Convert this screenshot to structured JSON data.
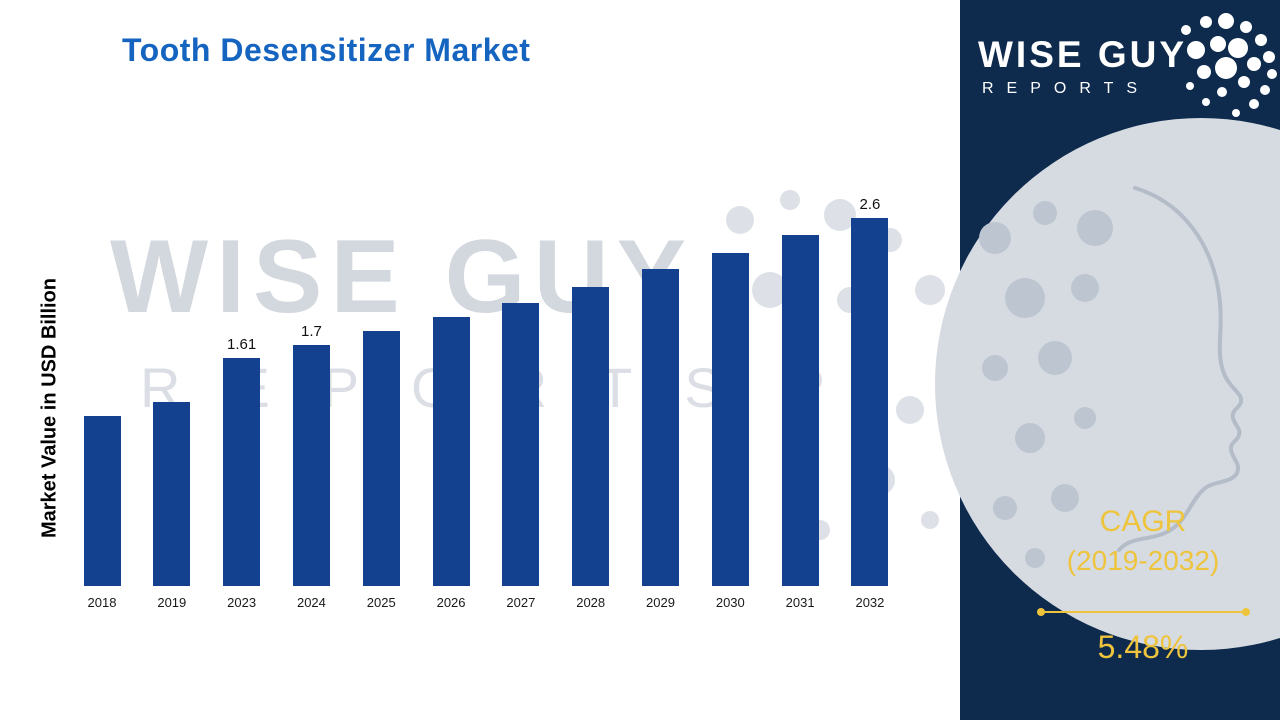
{
  "page": {
    "title": "Tooth Desensitizer Market"
  },
  "chart_data": {
    "type": "bar",
    "title": "Tooth Desensitizer Market",
    "xlabel": "",
    "ylabel": "Market Value in USD Billion",
    "categories": [
      "2018",
      "2019",
      "2023",
      "2024",
      "2025",
      "2026",
      "2027",
      "2028",
      "2029",
      "2030",
      "2031",
      "2032"
    ],
    "values": [
      1.2,
      1.3,
      1.61,
      1.7,
      1.8,
      1.9,
      2.0,
      2.11,
      2.24,
      2.35,
      2.48,
      2.6
    ],
    "bar_labels": [
      "",
      "",
      "1.61",
      "1.7",
      "",
      "",
      "",
      "",
      "",
      "",
      "",
      "2.6"
    ],
    "ylim": [
      0,
      3
    ],
    "grid": false,
    "legend": "none",
    "bar_color": "#14418f",
    "unit": "USD Billion"
  },
  "watermark": {
    "line1": "WISE GUY",
    "line2": "REPORTS"
  },
  "sidebar": {
    "logo": {
      "line1": "WISE GUY",
      "line2": "REPORTS"
    },
    "cagr": {
      "label": "CAGR",
      "range": "(2019-2032)",
      "value": "5.48%"
    },
    "colors": {
      "background": "#0e2b4d",
      "accent": "#eec43d",
      "title_blue": "#1565c0"
    }
  }
}
